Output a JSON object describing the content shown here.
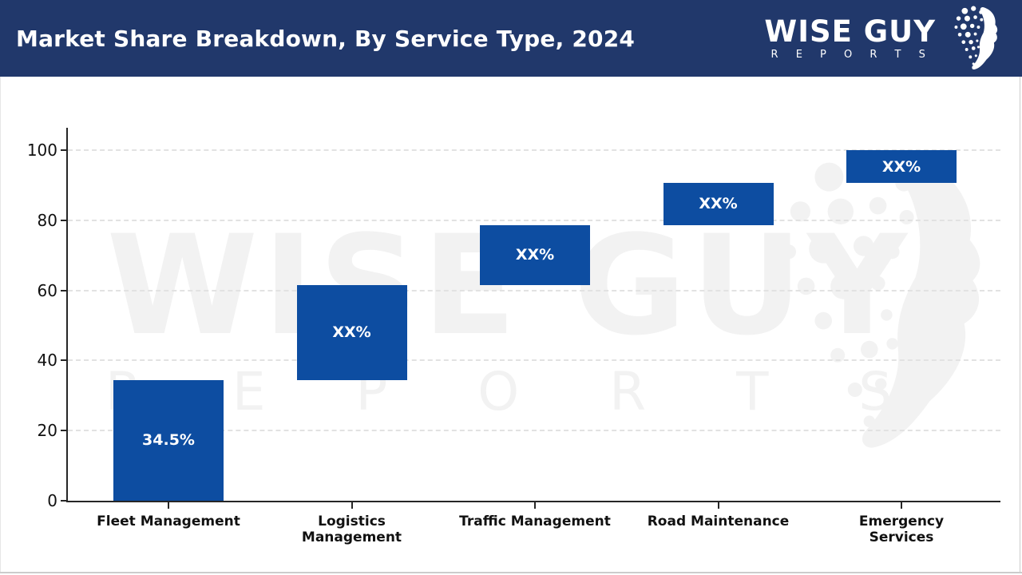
{
  "header": {
    "title": "Market Share Breakdown, By Service Type, 2024",
    "logo": {
      "name": "WISE GUY",
      "sub": "R E P O R T S"
    }
  },
  "watermark": {
    "name": "WISE GUY",
    "sub": "R E P O R T S"
  },
  "chart_data": {
    "type": "bar",
    "subtype": "waterfall",
    "title": "Market Share Breakdown, By Service Type, 2024",
    "categories": [
      "Fleet Management",
      "Logistics Management",
      "Traffic Management",
      "Road Maintenance",
      "Emergency Services"
    ],
    "bars": [
      {
        "category": "Fleet Management",
        "start": 0,
        "end": 34.5,
        "label": "34.5%"
      },
      {
        "category": "Logistics Management",
        "start": 34.5,
        "end": 61.4,
        "label": "XX%"
      },
      {
        "category": "Traffic Management",
        "start": 61.4,
        "end": 78.7,
        "label": "XX%"
      },
      {
        "category": "Road Maintenance",
        "start": 78.7,
        "end": 90.6,
        "label": "XX%"
      },
      {
        "category": "Emergency Services",
        "start": 90.6,
        "end": 100,
        "label": "XX%"
      }
    ],
    "yticks": [
      0,
      20,
      40,
      60,
      80,
      100
    ],
    "ylim": [
      0,
      105
    ],
    "xlabel": "",
    "ylabel": "",
    "grid": "horizontal-dashed",
    "legend": "none",
    "bar_color": "#0d4da1",
    "header_color": "#21386b",
    "label_color": "#ffffff"
  }
}
